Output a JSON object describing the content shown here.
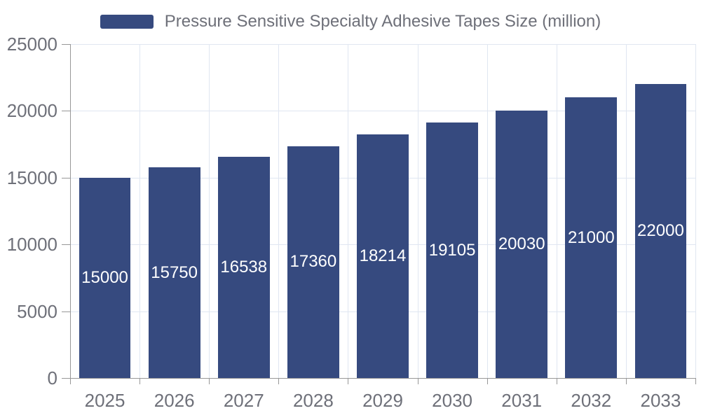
{
  "legend": {
    "label": "Pressure Sensitive Specialty Adhesive Tapes Size (million)"
  },
  "colors": {
    "bar": "#364A7F",
    "grid": "#E0E6F1",
    "axis": "#979797",
    "axis_label": "#6E7079",
    "value_label": "#FFFFFF",
    "background": "#FFFFFF"
  },
  "chart_data": {
    "type": "bar",
    "title": "Pressure Sensitive Specialty Adhesive Tapes Size (million)",
    "categories": [
      "2025",
      "2026",
      "2027",
      "2028",
      "2029",
      "2030",
      "2031",
      "2032",
      "2033"
    ],
    "values": [
      15000,
      15750,
      16538,
      17360,
      18214,
      19105,
      20030,
      21000,
      22000
    ],
    "xlabel": "",
    "ylabel": "",
    "ylim": [
      0,
      25000
    ],
    "ytick_step": 5000,
    "yticks": [
      0,
      5000,
      10000,
      15000,
      20000,
      25000
    ],
    "grid": true,
    "gridlines": "horizontal-and-vertical",
    "legend_position": "top-center",
    "value_labels": "inside-center",
    "bar_fill_ratio": 0.745
  }
}
